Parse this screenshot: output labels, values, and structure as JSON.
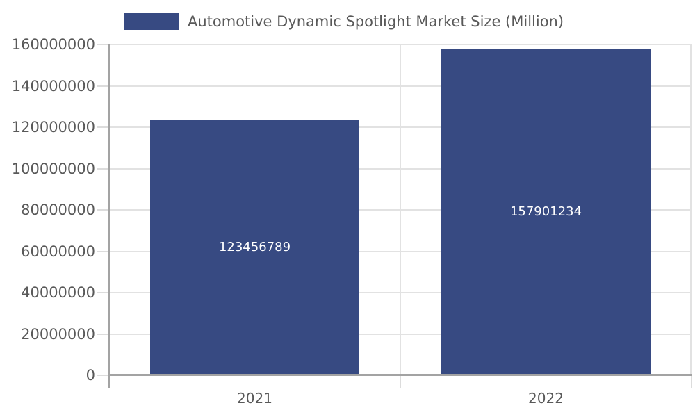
{
  "legend": {
    "label": "Automotive Dynamic Spotlight Market Size (Million)",
    "swatch_color": "#374a82"
  },
  "chart_data": {
    "type": "bar",
    "title": "Automotive Dynamic Spotlight Market Size (Million)",
    "categories": [
      "2021",
      "2022"
    ],
    "series": [
      {
        "name": "Automotive Dynamic Spotlight Market Size (Million)",
        "values": [
          123456789,
          157901234
        ],
        "color": "#374a82"
      }
    ],
    "value_labels": [
      "123456789",
      "157901234"
    ],
    "value_label_color": "#ffffff",
    "xlabel": "",
    "ylabel": "",
    "ylim": [
      0,
      160000000
    ],
    "yticks": [
      0,
      20000000,
      40000000,
      60000000,
      80000000,
      100000000,
      120000000,
      140000000,
      160000000
    ],
    "ytick_labels": [
      "0",
      "20000000",
      "40000000",
      "60000000",
      "80000000",
      "100000000",
      "120000000",
      "140000000",
      "160000000"
    ],
    "grid": true,
    "legend_position": "top",
    "colors": {
      "bar": "#374a82",
      "grid": "#e2e2e2",
      "axis": "#a3a3a3",
      "tick": "#dcdcdc",
      "text": "#595959"
    }
  }
}
